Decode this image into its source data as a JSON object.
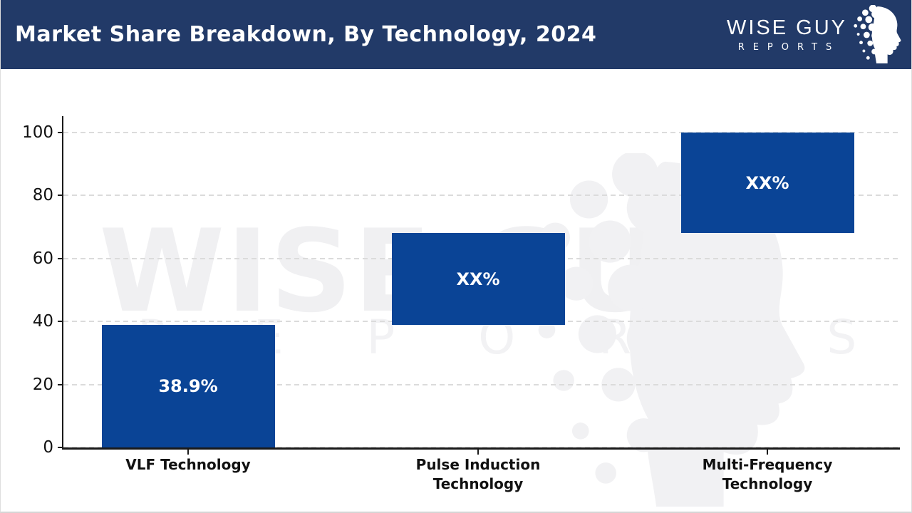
{
  "header": {
    "title": "Market Share Breakdown, By Technology, 2024",
    "logo": {
      "brand_line1": "WISE GUY",
      "brand_line2": "REPORTS"
    }
  },
  "watermark": {
    "line1": "WISE GUY",
    "line2": "R E P O R T S"
  },
  "chart_data": {
    "type": "bar",
    "variant": "waterfall",
    "title": "Market Share Breakdown, By Technology, 2024",
    "categories": [
      "VLF Technology",
      "Pulse Induction Technology",
      "Multi-Frequency Technology"
    ],
    "category_lines": [
      [
        "VLF Technology"
      ],
      [
        "Pulse Induction",
        "Technology"
      ],
      [
        "Multi-Frequency",
        "Technology"
      ]
    ],
    "bars": [
      {
        "category": "VLF Technology",
        "start": 0,
        "end": 38.9,
        "value": 38.9,
        "label": "38.9%"
      },
      {
        "category": "Pulse Induction Technology",
        "start": 38.9,
        "end": 68,
        "value": 29.1,
        "label": "XX%"
      },
      {
        "category": "Multi-Frequency Technology",
        "start": 68,
        "end": 100,
        "value": 32,
        "label": "XX%"
      }
    ],
    "ylim": [
      0,
      100
    ],
    "yticks": [
      0,
      20,
      40,
      60,
      80,
      100
    ],
    "xlabel": "",
    "ylabel": "",
    "grid": "horizontal-dashed",
    "legend": false,
    "colors": {
      "bar": "#0A4496",
      "bar_label": "#FFFFFF",
      "header_bg": "#223A68",
      "grid": "#DBDBDB",
      "axis": "#1A1A1A",
      "watermark": "#F0F0F2"
    }
  }
}
